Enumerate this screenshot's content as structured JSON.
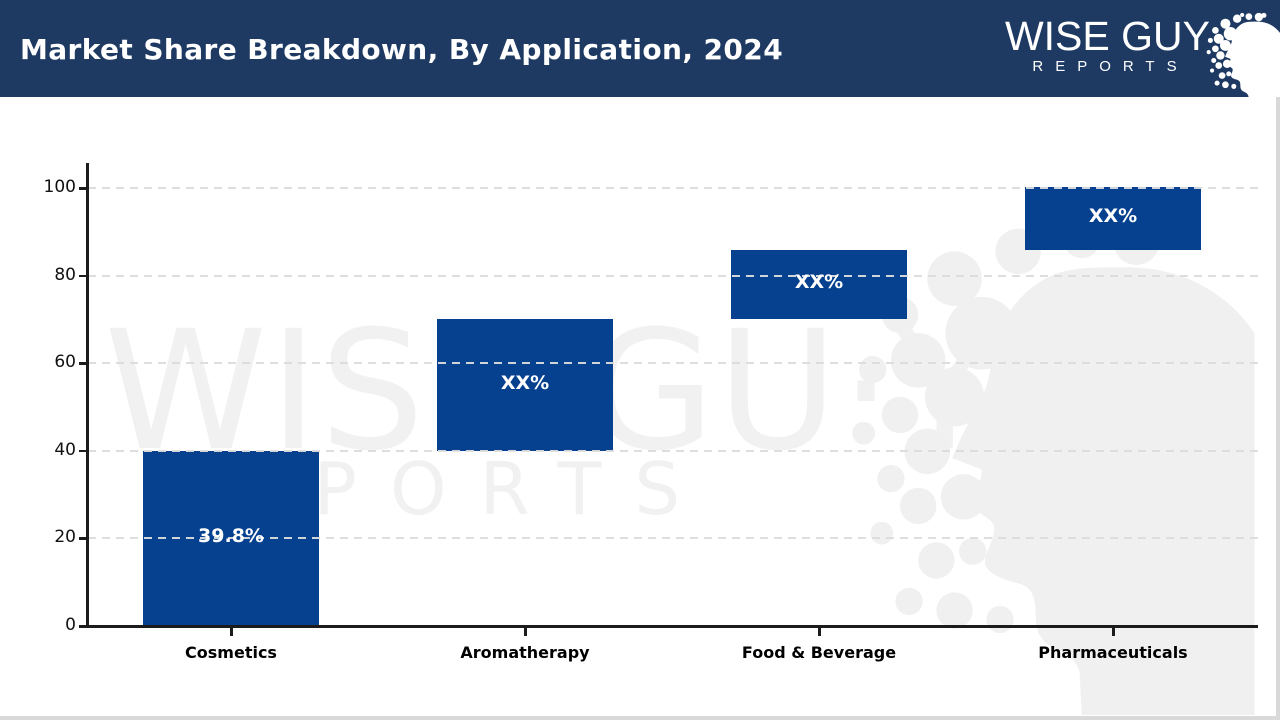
{
  "header": {
    "title": "Market Share Breakdown, By Application, 2024",
    "logo": {
      "name": "WISE GUY",
      "sub": "REPORTS"
    }
  },
  "watermark": {
    "line1": "WISE GU·Y",
    "line2": "REPORTS"
  },
  "chart_data": {
    "type": "bar",
    "subtype": "waterfall (stair-step market share)",
    "title": "Market Share Breakdown, By Application, 2024",
    "categories": [
      "Cosmetics",
      "Aromatherapy",
      "Food & Beverage",
      "Pharmaceuticals"
    ],
    "segments": [
      {
        "category": "Cosmetics",
        "start": 0,
        "end": 39.8,
        "label": "39.8%"
      },
      {
        "category": "Aromatherapy",
        "start": 39.8,
        "end": 69.8,
        "label": "XX%"
      },
      {
        "category": "Food & Beverage",
        "start": 69.8,
        "end": 85.7,
        "label": "XX%"
      },
      {
        "category": "Pharmaceuticals",
        "start": 85.7,
        "end": 100,
        "label": "XX%"
      }
    ],
    "xlabel": "",
    "ylabel": "",
    "ylim": [
      0,
      105.5
    ],
    "yticks": [
      0,
      20,
      40,
      60,
      80,
      100
    ],
    "grid": "horizontal dashed, drawn over bars",
    "legend": "none",
    "bar_color": "#05418f",
    "bar_label_color": "#ffffff",
    "axis_color": "#1c1c1c",
    "header_bg_color": "#1e3a63",
    "watermark_color": "#f0f0f0"
  }
}
